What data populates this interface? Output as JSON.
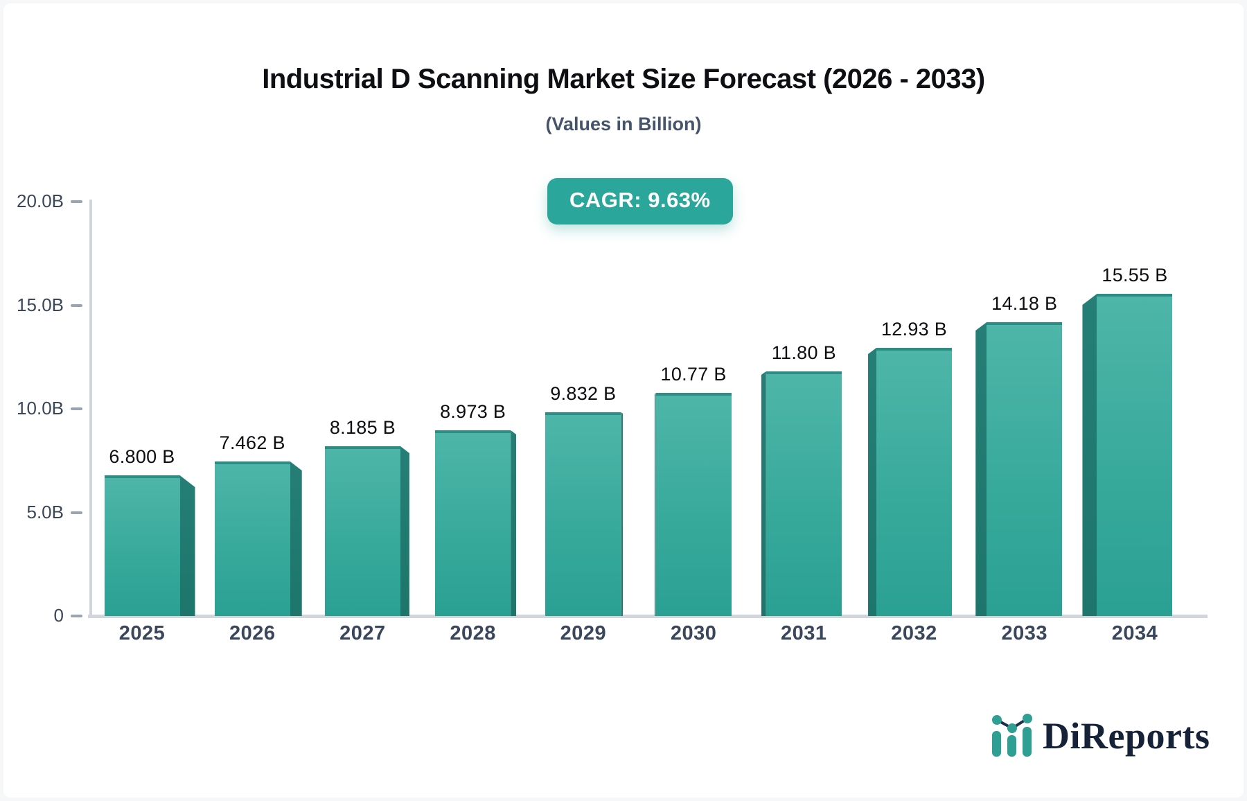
{
  "header": {
    "title": "Industrial D Scanning Market Size Forecast (2026 - 2033)",
    "subtitle": "(Values in Billion)",
    "cagr_label": "CAGR: 9.63%"
  },
  "colors": {
    "accent": "#2aa79a",
    "bar_front_top": "#4eb6a9",
    "bar_front_bottom": "#2aa093",
    "bar_side": "#1f7e73",
    "axis_gray": "#d2d6dc",
    "tick_gray": "#9aa3af",
    "text_dark": "#0b0d10",
    "text_slate": "#3b4758",
    "logo_navy": "#152238"
  },
  "chart_data": {
    "type": "bar",
    "title": "Industrial D Scanning Market Size Forecast (2026 - 2033)",
    "subtitle": "(Values in Billion)",
    "cagr": "CAGR: 9.63%",
    "categories": [
      "2025",
      "2026",
      "2027",
      "2028",
      "2029",
      "2030",
      "2031",
      "2032",
      "2033",
      "2034"
    ],
    "values": [
      6.8,
      7.462,
      8.185,
      8.973,
      9.832,
      10.77,
      11.8,
      12.93,
      14.18,
      15.55
    ],
    "bar_labels": [
      "6.800 B",
      "7.462 B",
      "8.185 B",
      "8.973 B",
      "9.832 B",
      "10.77 B",
      "11.80 B",
      "12.93 B",
      "14.18 B",
      "15.55 B"
    ],
    "ylim": [
      0,
      20
    ],
    "ytick_values": [
      20,
      15,
      10,
      5,
      0
    ],
    "ytick_labels": [
      "20.0B",
      "15.0B",
      "10.0B",
      "5.0B",
      "0"
    ],
    "grid": "off",
    "legend": "none",
    "unit": "Billion"
  },
  "footer": {
    "brand": "DiReports"
  }
}
